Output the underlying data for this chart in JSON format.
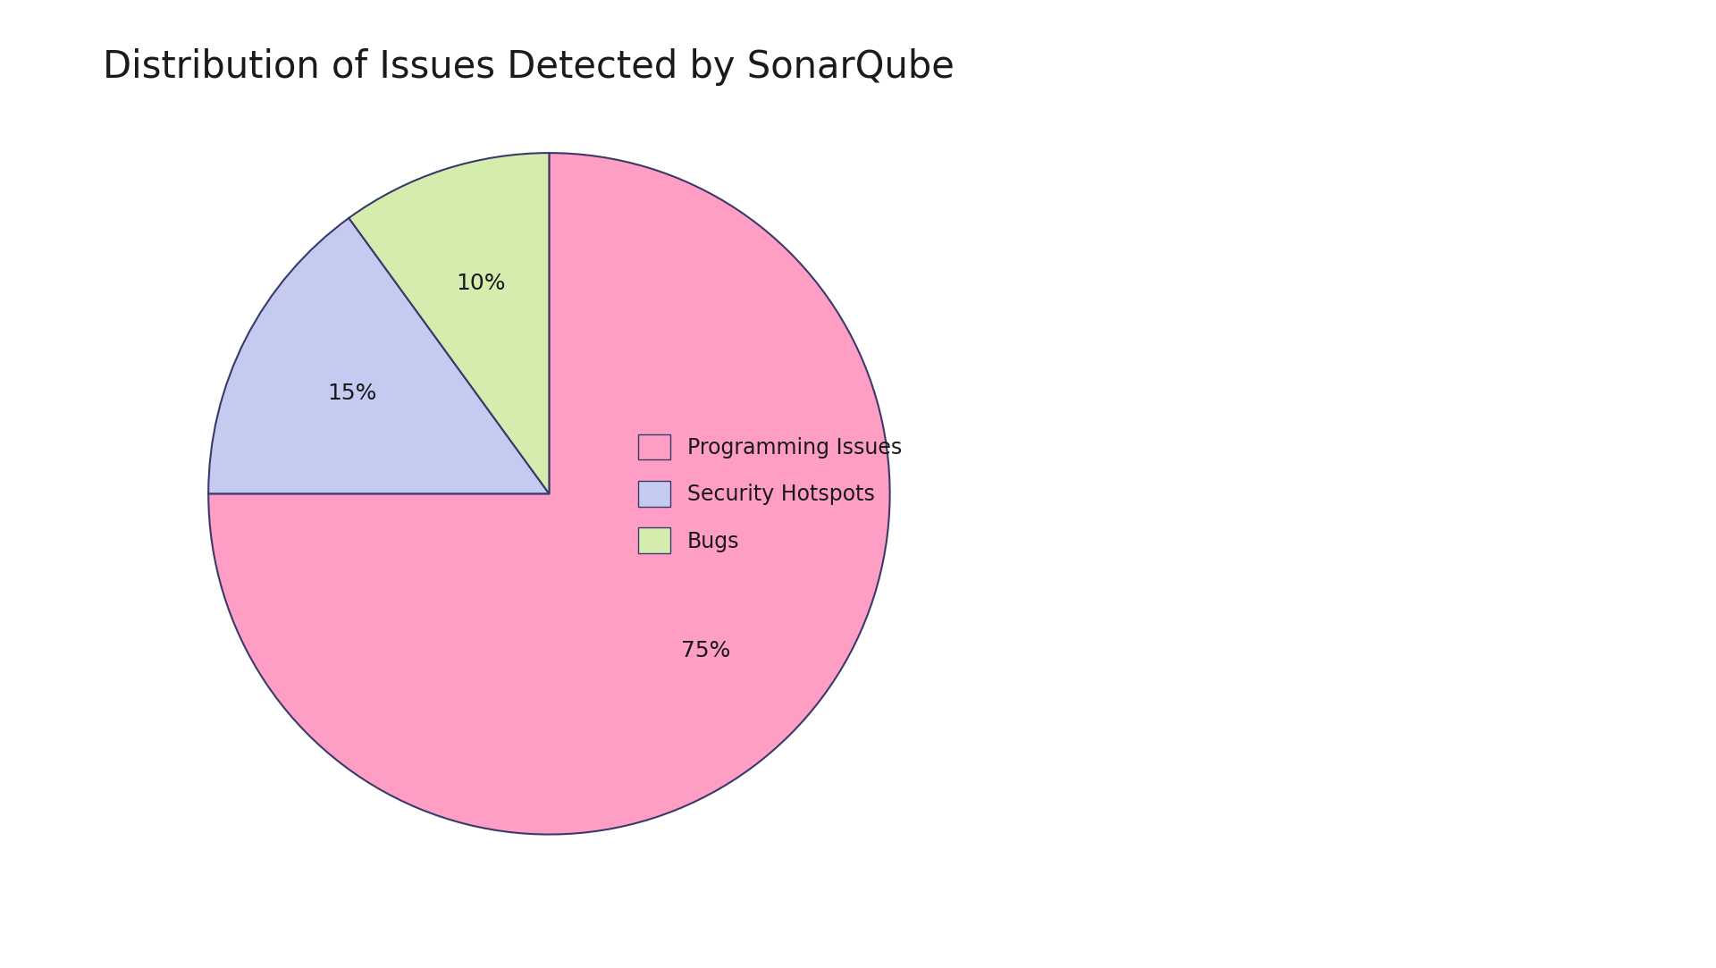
{
  "title": "Distribution of Issues Detected by SonarQube",
  "labels": [
    "Programming Issues",
    "Security Hotspots",
    "Bugs"
  ],
  "values": [
    75,
    15,
    10
  ],
  "colors": [
    "#FF9EC4",
    "#C5CAF0",
    "#D4EDAF"
  ],
  "edge_color": "#3A3A6A",
  "edge_width": 1.5,
  "autopct_fontsize": 18,
  "title_fontsize": 30,
  "legend_fontsize": 17,
  "startangle": 90,
  "background_color": "#ffffff",
  "text_color": "#1a1a1a"
}
